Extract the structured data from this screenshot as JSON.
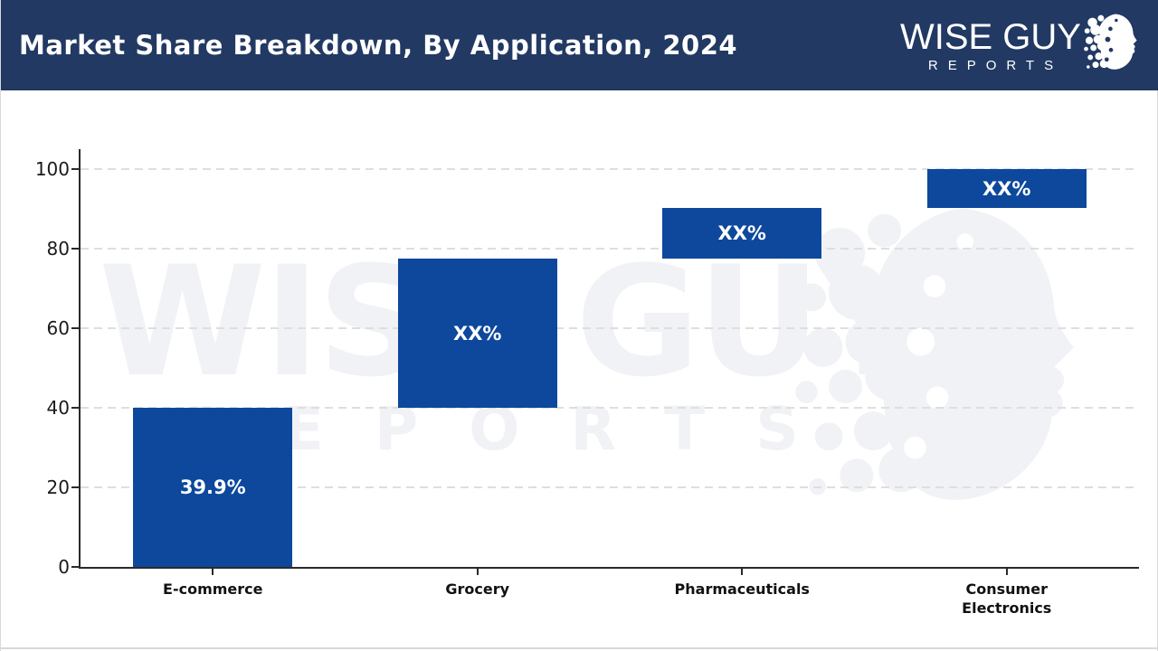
{
  "header": {
    "title": "Market Share Breakdown, By Application, 2024",
    "logo": {
      "line1": "WISE GUY",
      "line2": "REPORTS"
    }
  },
  "watermark": {
    "line1": "WISE GUY",
    "line2": "REPORTS"
  },
  "colors": {
    "header_bg": "#213963",
    "bar": "#0D489C",
    "bar_label": "#FFFFFF",
    "grid": "#DEDEDE",
    "axis": "#2A2A2A",
    "tick_label": "#1A1A1A",
    "watermark": "#F1F2F6"
  },
  "chart_data": {
    "type": "bar",
    "subtype": "waterfall",
    "title": "Market Share Breakdown, By Application, 2024",
    "categories": [
      "E-commerce",
      "Grocery",
      "Pharmaceuticals",
      "Consumer Electronics"
    ],
    "segments": [
      {
        "category": "E-commerce",
        "start": 0,
        "end": 39.9,
        "value": 39.9,
        "label": "39.9%"
      },
      {
        "category": "Grocery",
        "start": 39.9,
        "end": 77.5,
        "value": 37.6,
        "label": "XX%"
      },
      {
        "category": "Pharmaceuticals",
        "start": 77.5,
        "end": 90.2,
        "value": 12.7,
        "label": "XX%"
      },
      {
        "category": "Consumer Electronics",
        "start": 90.2,
        "end": 100,
        "value": 9.8,
        "label": "XX%"
      }
    ],
    "xlabel": "",
    "ylabel": "",
    "ylim": [
      0,
      100
    ],
    "yticks": [
      0,
      20,
      40,
      60,
      80,
      100
    ],
    "grid": "horizontal-dashed",
    "legend": false,
    "bar_color": "#0D489C"
  }
}
